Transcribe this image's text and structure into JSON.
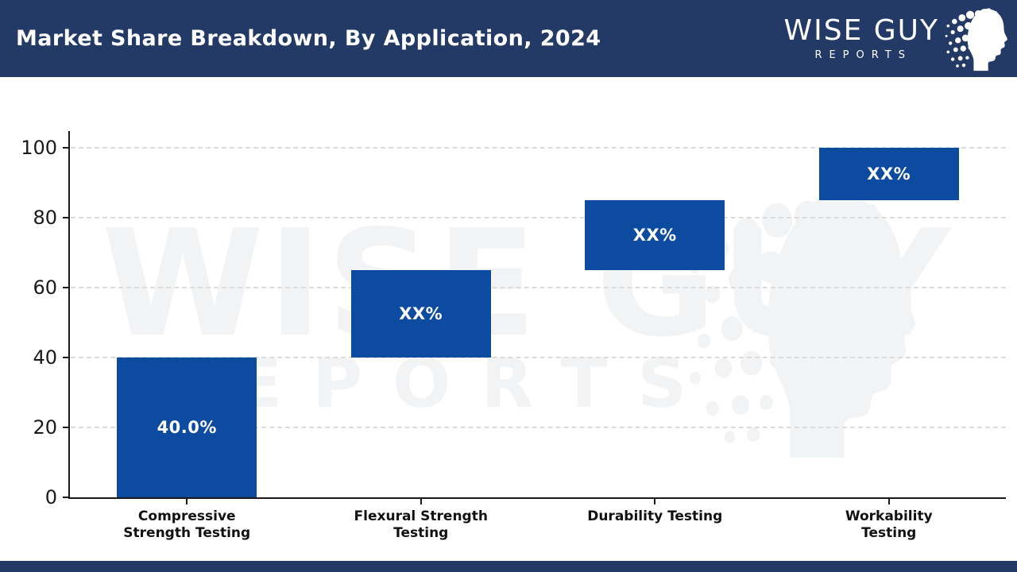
{
  "header": {
    "title": "Market Share Breakdown, By Application, 2024",
    "logo": {
      "wordmark": "WISE GUY",
      "subtitle": "REPORTS"
    }
  },
  "watermark": {
    "wordmark": "WISE GUY",
    "subtitle": "REPORTS"
  },
  "chart_data": {
    "type": "bar",
    "subtype": "floating-segment-waterfall",
    "title": "Market Share Breakdown, By Application, 2024",
    "categories": [
      "Compressive Strength Testing",
      "Flexural Strength Testing",
      "Durability Testing",
      "Workability Testing"
    ],
    "category_label_lines": [
      [
        "Compressive",
        "Strength Testing"
      ],
      [
        "Flexural Strength",
        "Testing"
      ],
      [
        "Durability Testing"
      ],
      [
        "Workability",
        "Testing"
      ]
    ],
    "segments": [
      {
        "category": "Compressive Strength Testing",
        "start": 0,
        "end": 40,
        "label": "40.0%"
      },
      {
        "category": "Flexural Strength Testing",
        "start": 40,
        "end": 65,
        "label": "XX%"
      },
      {
        "category": "Durability Testing",
        "start": 65,
        "end": 85,
        "label": "XX%"
      },
      {
        "category": "Workability Testing",
        "start": 85,
        "end": 100,
        "label": "XX%"
      }
    ],
    "yticks": [
      0,
      20,
      40,
      60,
      80,
      100
    ],
    "ylim": [
      0,
      105
    ],
    "grid": {
      "horizontal": true,
      "style": "dashed",
      "color": "#dcdcdc"
    },
    "legend": "none",
    "colors": {
      "bar": "#0d4ba0",
      "axis": "#1a1a1a",
      "bar_label": "#ffffff"
    }
  },
  "theme": {
    "header_bg": "#233a66",
    "footer_bg": "#233a66",
    "page_bg": "#ffffff",
    "watermark_color": "#f2f3f5",
    "text_on_dark": "#ffffff"
  }
}
